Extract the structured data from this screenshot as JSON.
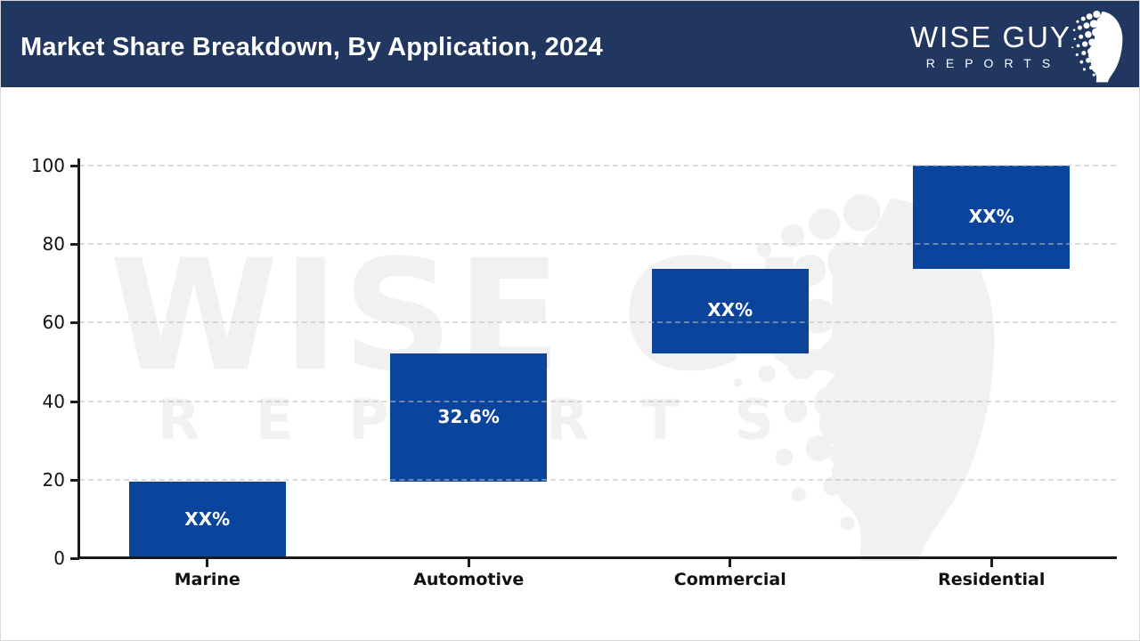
{
  "header": {
    "title": "Market Share Breakdown, By Application, 2024",
    "logo": {
      "line1": "WISE GUY",
      "line2": "REPORTS"
    }
  },
  "watermark": {
    "line1": "WISE GUY",
    "line2": "REPORTS"
  },
  "chart_data": {
    "type": "bar",
    "subtype": "waterfall",
    "title": "Market Share Breakdown, By Application, 2024",
    "categories": [
      "Marine",
      "Automotive",
      "Commercial",
      "Residential"
    ],
    "segments": [
      {
        "category": "Marine",
        "start": 0,
        "end": 19.5,
        "label": "XX%"
      },
      {
        "category": "Automotive",
        "start": 19.5,
        "end": 52.1,
        "label": "32.6%"
      },
      {
        "category": "Commercial",
        "start": 52.1,
        "end": 73.8,
        "label": "XX%"
      },
      {
        "category": "Residential",
        "start": 73.8,
        "end": 100,
        "label": "XX%"
      }
    ],
    "yticks": [
      0,
      20,
      40,
      60,
      80,
      100
    ],
    "ylim": [
      0,
      100
    ],
    "xlabel": "",
    "ylabel": "",
    "grid": "horizontal-dashed",
    "legend": "none",
    "bar_color": "#0B449C",
    "bar_label_color": "#ffffff",
    "header_color": "#213760",
    "watermark_color": "#f1f1f1"
  }
}
